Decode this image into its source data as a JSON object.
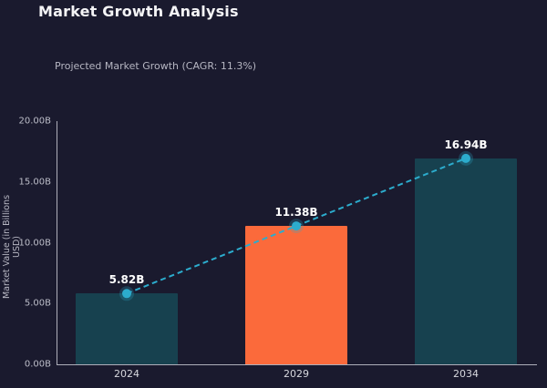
{
  "header": {
    "title": "Market Growth Analysis",
    "subtitle": "Projected Market Growth (CAGR: 11.3%)"
  },
  "chart_data": {
    "type": "bar",
    "title": "Market Growth Analysis",
    "subtitle": "Projected Market Growth (CAGR: 11.3%)",
    "categories": [
      "2024",
      "2029",
      "2034"
    ],
    "values": [
      5.82,
      11.38,
      16.94
    ],
    "value_labels": [
      "5.82B",
      "11.38B",
      "16.94B"
    ],
    "xlabel": "",
    "ylabel": "Market Value (in Billions USD)",
    "ylim": [
      0,
      20
    ],
    "yticks": [
      0,
      5,
      10,
      15,
      20
    ],
    "ytick_labels": [
      "0.00B",
      "5.00B",
      "10.00B",
      "15.00B",
      "20.00B"
    ],
    "grid": false,
    "legend": false,
    "bar_colors": [
      "#17414f",
      "#fb6a3b",
      "#17414f"
    ],
    "trendline_color": "#2caccd",
    "trendline_style": "dashed",
    "marker_color": "#2caccd",
    "background_color": "#1a1a2e",
    "cagr_percent": 11.3
  }
}
